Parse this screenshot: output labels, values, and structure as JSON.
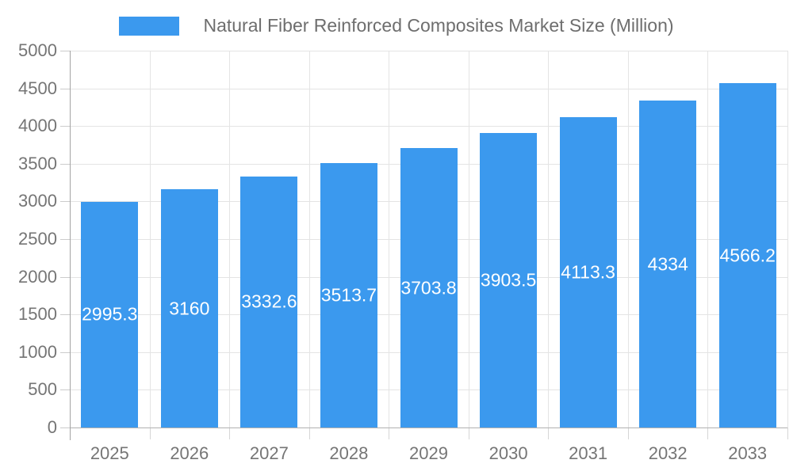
{
  "legend": {
    "label": "Natural Fiber Reinforced Composites Market Size (Million)"
  },
  "chart_data": {
    "type": "bar",
    "title": "Natural Fiber Reinforced Composites Market Size (Million)",
    "series_name": "Natural Fiber Reinforced Composites Market Size (Million)",
    "categories": [
      "2025",
      "2026",
      "2027",
      "2028",
      "2029",
      "2030",
      "2031",
      "2032",
      "2033"
    ],
    "values": [
      2995.3,
      3160,
      3332.6,
      3513.7,
      3703.8,
      3903.5,
      4113.3,
      4334,
      4566.2
    ],
    "xlabel": "",
    "ylabel": "",
    "ylim": [
      0,
      5000
    ],
    "ytick_step": 500,
    "yticks": [
      0,
      500,
      1000,
      1500,
      2000,
      2500,
      3000,
      3500,
      4000,
      4500,
      5000
    ],
    "grid": true,
    "legend_position": "top",
    "bar_color": "#3B99EE",
    "value_label_color": "#FFFFFF",
    "axis_label_color": "#757575",
    "legend_text_color": "#6E6E6E"
  }
}
